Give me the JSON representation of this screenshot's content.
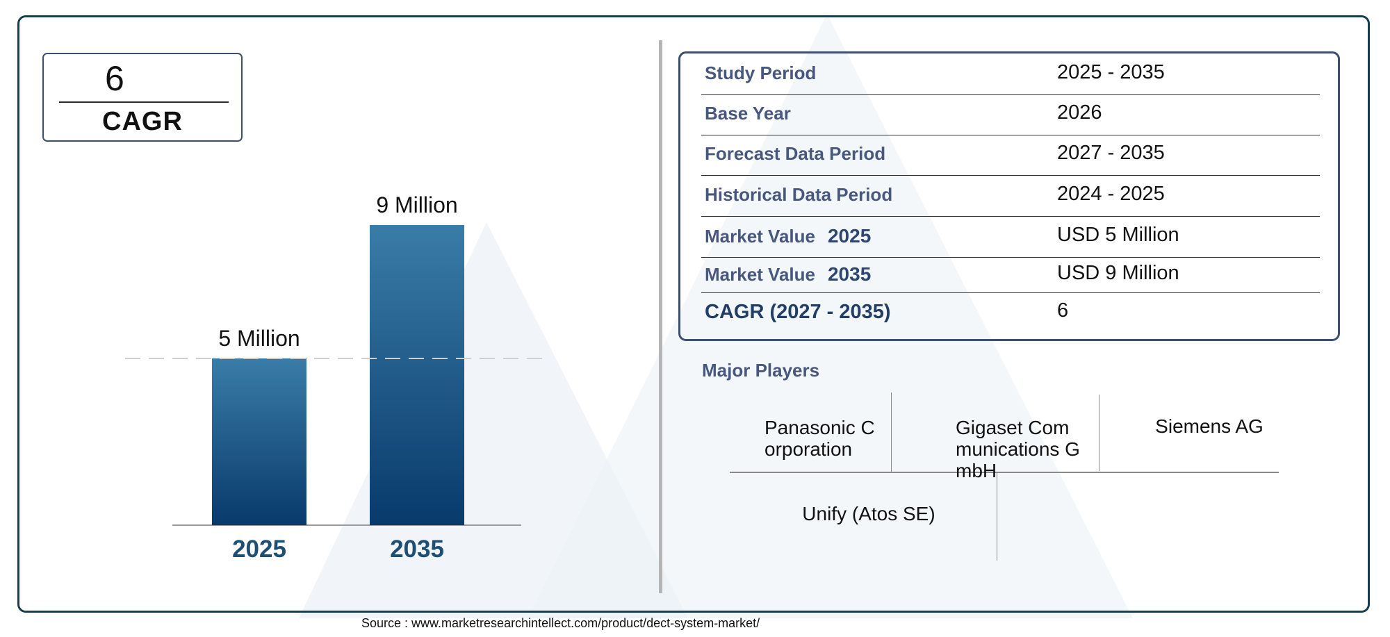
{
  "cagr_box": {
    "value": "6",
    "label": "CAGR"
  },
  "chart_data": {
    "type": "bar",
    "categories": [
      "2025",
      "2035"
    ],
    "values": [
      5,
      9
    ],
    "data_labels": [
      "5 Million",
      "9 Million"
    ],
    "ylim": [
      0,
      10
    ],
    "grid": false,
    "colors": {
      "bar_top": "#3a7ca8",
      "bar_bottom": "#083a6c",
      "tick_label": "#1d4e74"
    }
  },
  "info_table": [
    {
      "label": "Study Period",
      "value": "2025 - 2035"
    },
    {
      "label": "Base Year",
      "value": "2026"
    },
    {
      "label": "Forecast Data Period",
      "value": "2027 - 2035"
    },
    {
      "label": "Historical Data Period",
      "value": "2024 - 2025"
    },
    {
      "label": "Market Value",
      "year": "2025",
      "value": "USD 5 Million"
    },
    {
      "label": "Market Value",
      "year": "2035",
      "value": "USD 9 Million"
    },
    {
      "label": "CAGR (2027 - 2035)",
      "value": "6"
    }
  ],
  "players": {
    "title": "Major Players",
    "items": [
      "Panasonic Corporation",
      "Gigaset Communications GmbH",
      "Siemens AG",
      "Unify (Atos SE)"
    ]
  },
  "source": "Source : www.marketresearchintellect.com/product/dect-system-market/"
}
